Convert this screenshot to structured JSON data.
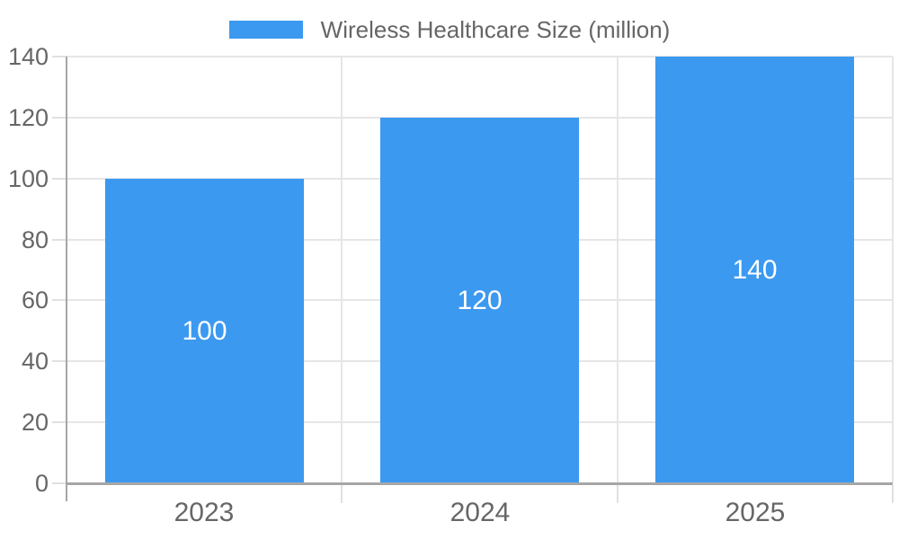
{
  "chart_data": {
    "type": "bar",
    "title": "Wireless Healthcare Size (million)",
    "categories": [
      "2023",
      "2024",
      "2025"
    ],
    "series": [
      {
        "name": "Wireless Healthcare Size (million)",
        "values": [
          100,
          120,
          140
        ]
      }
    ],
    "bar_value_labels": [
      "100",
      "120",
      "140"
    ],
    "y_ticks": [
      0,
      20,
      40,
      60,
      80,
      100,
      120,
      140
    ],
    "y_tick_labels": [
      "0",
      "20",
      "40",
      "60",
      "80",
      "100",
      "120",
      "140"
    ],
    "xlabel": "",
    "ylabel": "",
    "ylim": [
      0,
      140
    ],
    "grid": true,
    "legend_position": "top-center",
    "colors": {
      "bar": "#3b99f0",
      "gridline": "#e6e6e6",
      "axis_line": "#a6a6a6",
      "tick_stub": "#e0e0e0",
      "tick_text": "#666666",
      "legend_text": "#666666",
      "bar_label_text": "#ffffff",
      "background": "#ffffff"
    }
  },
  "legend": {
    "label": "Wireless Healthcare Size (million)"
  }
}
